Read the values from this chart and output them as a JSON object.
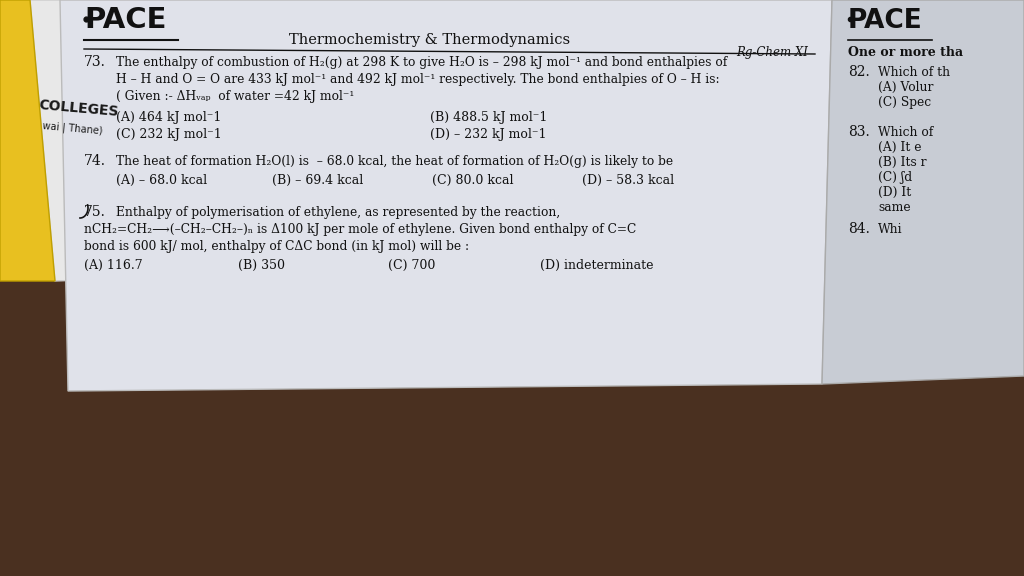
{
  "bg_color_outer": "#4a3020",
  "bg_color_page_left": "#e0e2ea",
  "bg_color_page_right": "#c8ccd4",
  "yellow_book_color": "#e8c020",
  "section_title": "Thermochemistry & Thermodynamics",
  "rg_chem": "Rg-Chem XI",
  "q73_num": "73.",
  "q73_line1": "The enthalpy of combustion of H₂(g) at 298 K to give H₂O is – 298 kJ mol⁻¹ and bond enthalpies of",
  "q73_line2": "H – H and O = O are 433 kJ mol⁻¹ and 492 kJ mol⁻¹ respectively. The bond enthalpies of O – H is:",
  "q73_line3": "( Given :- ΔHᵥₐₚ  of water =42 kJ mol⁻¹",
  "q73_optA": "(A) 464 kJ mol⁻1",
  "q73_optB": "(B) 488.5 kJ mol⁻1",
  "q73_optC": "(C) 232 kJ mol⁻1",
  "q73_optD": "(D) – 232 kJ mol⁻1",
  "q74_num": "74.",
  "q74_line1": "The heat of formation H₂O(l) is  – 68.0 kcal, the heat of formation of H₂O(g) is likely to be",
  "q74_optA": "(A) – 68.0 kcal",
  "q74_optB": "(B) – 69.4 kcal",
  "q74_optC": "(C) 80.0 kcal",
  "q74_optD": "(D) – 58.3 kcal",
  "q75_num": "75.",
  "q75_line1": "Enthalpy of polymerisation of ethylene, as represented by the reaction,",
  "q75_line2": "nCH₂=CH₂⟶(–CH₂–CH₂–)ₙ is Δ100 kJ per mole of ethylene. Given bond enthalpy of C=C",
  "q75_line3": "bond is 600 kJ/ mol, enthalpy of CΔC bond (in kJ mol) will be :",
  "q75_optA": "(A) 116.7",
  "q75_optB": "(B) 350",
  "q75_optC": "(C) 700",
  "q75_optD": "(D) indeterminate",
  "right_subheading": "One or more tha",
  "q82_num": "82.",
  "q82_line1": "Which of th",
  "q82_optA": "(A) Volur",
  "q82_optC": "(C) Spec",
  "q83_num": "83.",
  "q83_line1": "Which of",
  "q83_optA": "(A) It e",
  "q83_optB": "(B) Its r",
  "q83_optC": "(C) ʃd",
  "q83_optD": "(D) It",
  "q83_same": "same",
  "q84_num": "84.",
  "q84_line1": "Whi"
}
